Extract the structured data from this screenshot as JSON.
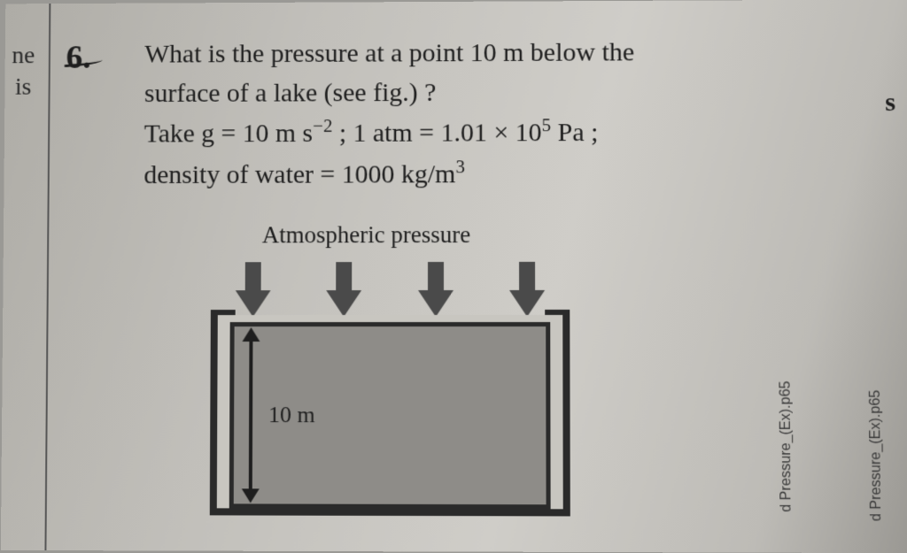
{
  "margin": {
    "line1": "ne",
    "line2": "is"
  },
  "question_number": "6.",
  "question": {
    "line1_a": "What is the pressure at a point ",
    "depth_value": "10",
    "depth_unit": " m ",
    "line1_b": "below the",
    "line2": "surface of a lake (see fig.) ?",
    "line3_a": "Take g = ",
    "g_value": "10",
    "g_unit_a": " m s",
    "g_exp": "−2",
    "line3_b": " ; 1 atm = ",
    "atm_value": "1.01 × 10",
    "atm_exp": "5",
    "atm_unit": " Pa ;",
    "line4_a": "density of water = ",
    "density_value": "1000",
    "density_unit_a": " kg/m",
    "density_exp": "3"
  },
  "figure": {
    "top_label": "Atmospheric pressure",
    "depth_label": "10 m",
    "num_arrows": 4,
    "water_color": "#8e8c88",
    "outline_color": "#2a2a2a",
    "arrow_color": "#4a4a4a"
  },
  "side_text": "d Pressure_(Ex).p65",
  "right_cut": "s"
}
